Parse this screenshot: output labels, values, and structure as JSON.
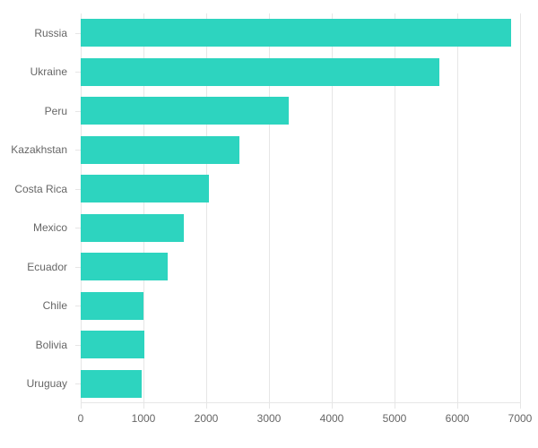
{
  "chart": {
    "type": "bar",
    "orientation": "horizontal",
    "background_color": "#ffffff",
    "bar_color": "#2dd4bf",
    "grid_color": "#e6e6e6",
    "text_color": "#666666",
    "label_fontsize": 12,
    "xlim": [
      0,
      7000
    ],
    "xtick_step": 1000,
    "xticks": [
      0,
      1000,
      2000,
      3000,
      4000,
      5000,
      6000,
      7000
    ],
    "categories": [
      "Russia",
      "Ukraine",
      "Peru",
      "Kazakhstan",
      "Costa Rica",
      "Mexico",
      "Ecuador",
      "Chile",
      "Bolivia",
      "Uruguay"
    ],
    "values": [
      6850,
      5720,
      3320,
      2530,
      2040,
      1640,
      1380,
      1000,
      1020,
      970
    ],
    "bar_gap_ratio": 0.25
  }
}
